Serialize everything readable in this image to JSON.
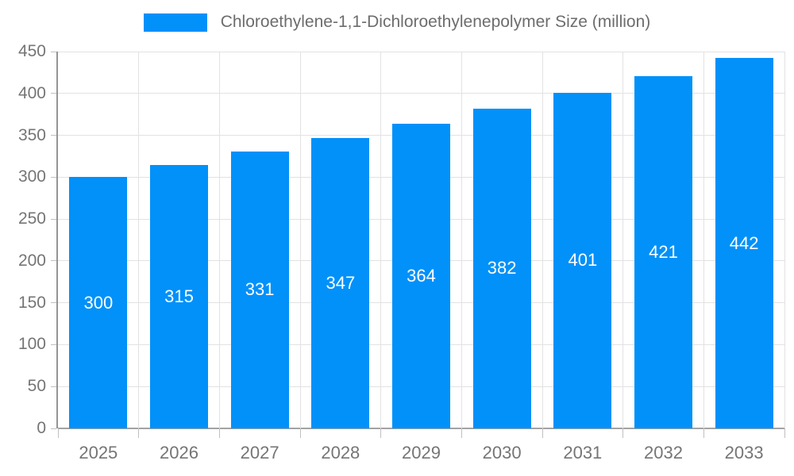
{
  "chart_data": {
    "type": "bar",
    "title": "Chloroethylene-1,1-Dichloroethylenepolymer Size (million)",
    "legend": {
      "label": "Chloroethylene-1,1-Dichloroethylenepolymer Size (million)",
      "position": "top"
    },
    "categories": [
      "2025",
      "2026",
      "2027",
      "2028",
      "2029",
      "2030",
      "2031",
      "2032",
      "2033"
    ],
    "values": [
      300,
      315,
      331,
      347,
      364,
      382,
      401,
      421,
      442
    ],
    "xlabel": "",
    "ylabel": "",
    "ylim": [
      0,
      450
    ],
    "yticks": [
      0,
      50,
      100,
      150,
      200,
      250,
      300,
      350,
      400,
      450
    ],
    "grid": true,
    "colors": {
      "bar": "#0191f9",
      "bar_value_label": "#ffffff",
      "axis_text": "#757575",
      "legend_text": "#6d6d6d",
      "gridline": "#e2e2e2",
      "axis_line": "#a3a3a3"
    }
  }
}
